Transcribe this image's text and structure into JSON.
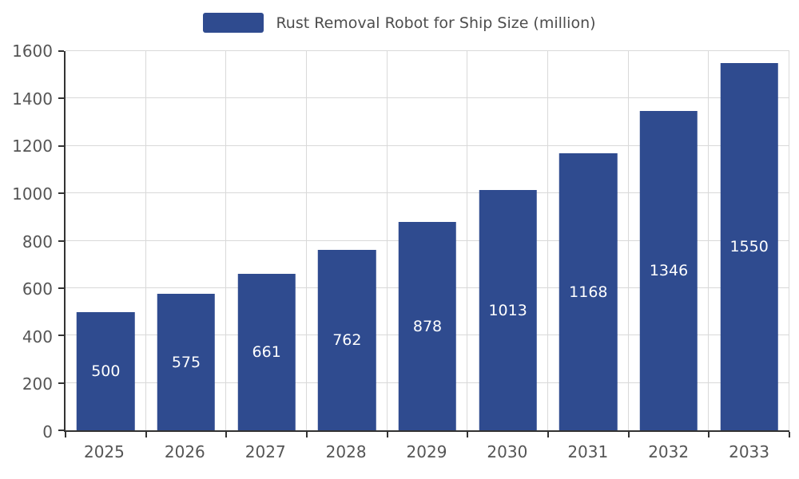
{
  "legend": {
    "label": "Rust Removal Robot for Ship Size (million)"
  },
  "chart_data": {
    "type": "bar",
    "title": "Rust Removal Robot for Ship Size (million)",
    "categories": [
      "2025",
      "2026",
      "2027",
      "2028",
      "2029",
      "2030",
      "2031",
      "2032",
      "2033"
    ],
    "values": [
      500,
      575,
      661,
      762,
      878,
      1013,
      1168,
      1346,
      1550
    ],
    "xlabel": "",
    "ylabel": "",
    "ylim": [
      0,
      1600
    ],
    "ytick_step": 200,
    "grid": true,
    "legend_position": "top-center",
    "bar_color": "#2F4B8F",
    "grid_color": "#D9D9D9",
    "axis_color": "#333333",
    "tick_label_color": "#555555",
    "value_label_color": "#FFFFFF"
  }
}
